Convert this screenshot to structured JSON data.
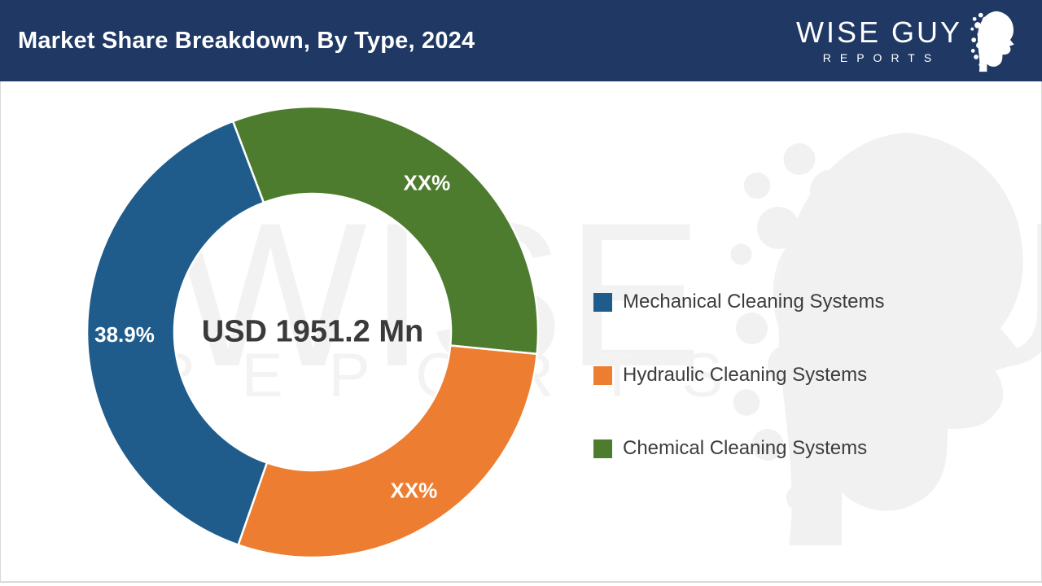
{
  "header": {
    "title": "Market Share Breakdown, By Type, 2024",
    "logo": {
      "line1": "WISE GUY",
      "line2": "REPORTS"
    }
  },
  "watermark": {
    "line1": "WISE GUY",
    "line2": "REPORTS"
  },
  "chart_data": {
    "type": "pie",
    "subtype": "donut",
    "title": "Market Share Breakdown, By Type, 2024",
    "center_label": "USD 1951.2 Mn",
    "start_angle_deg": 339.3,
    "direction": "clockwise",
    "segments": [
      {
        "name": "Chemical Cleaning Systems",
        "value_pct": 32.3,
        "label": "XX%",
        "color": "#4D7C2E"
      },
      {
        "name": "Hydraulic Cleaning Systems",
        "value_pct": 28.8,
        "label": "XX%",
        "color": "#ED7D31"
      },
      {
        "name": "Mechanical Cleaning Systems",
        "value_pct": 38.9,
        "label": "38.9%",
        "color": "#1F5C8B"
      }
    ],
    "legend_position": "right"
  },
  "legend": {
    "items": [
      {
        "label": "Mechanical Cleaning Systems",
        "color": "#1F5C8B"
      },
      {
        "label": "Hydraulic Cleaning Systems",
        "color": "#ED7D31"
      },
      {
        "label": "Chemical Cleaning Systems",
        "color": "#4D7C2E"
      }
    ]
  },
  "colors": {
    "header_bg": "#1F3864",
    "text_dark": "#3A3A3A",
    "watermark": "#F2F2F2",
    "border": "#D9D9D9"
  }
}
